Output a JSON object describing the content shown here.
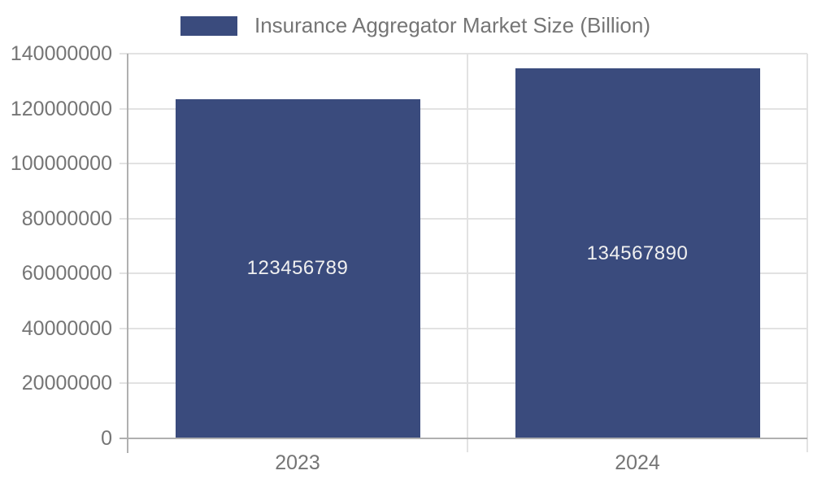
{
  "chart_data": {
    "type": "bar",
    "title": "Insurance Aggregator Market Size (Billion)",
    "legend": [
      {
        "label": "Insurance Aggregator Market Size (Billion)",
        "color": "#3a4b7d"
      }
    ],
    "legend_position": "top-center",
    "categories": [
      "2023",
      "2024"
    ],
    "series": [
      {
        "name": "Insurance Aggregator Market Size (Billion)",
        "values": [
          123456789,
          134567890
        ]
      }
    ],
    "bar_value_labels": [
      "123456789",
      "134567890"
    ],
    "xlabel": "",
    "ylabel": "",
    "ylim": [
      0,
      140000000
    ],
    "ytick_step": 20000000,
    "yticks": [
      0,
      20000000,
      40000000,
      60000000,
      80000000,
      100000000,
      120000000,
      140000000
    ],
    "grid": true,
    "colors": {
      "bar": "#3a4b7d",
      "axis": "#b0b0b0",
      "gridline": "#e2e2e2",
      "tick_text": "#757575",
      "bar_label_text": "#f0f0f0",
      "background": "#ffffff"
    }
  }
}
